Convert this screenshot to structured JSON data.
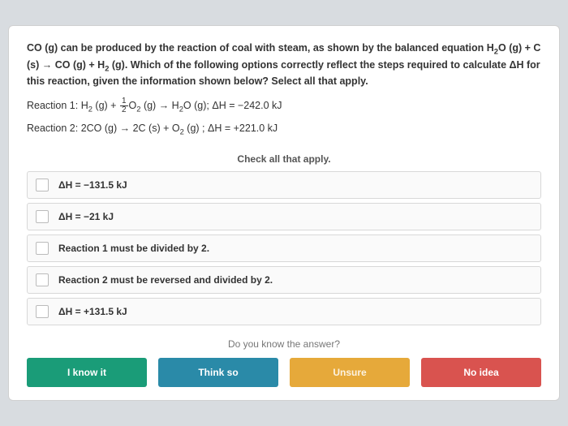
{
  "question_html": "CO (g) can be produced by the reaction of coal with steam, as shown by the balanced equation H<sub>2</sub>O (g) + C (s) → CO (g) + H<sub>2</sub> (g). Which of the following options correctly reflect the steps required to calculate ΔH for this reaction, given the information shown below? Select all that apply.",
  "reaction1_html": "Reaction 1: H<sub>2</sub> (g) + <span class='frac'><span class='n'>1</span><span class='d'>2</span></span>O<sub>2</sub> (g) → H<sub>2</sub>O (g); ΔH = −242.0 kJ",
  "reaction2_html": "Reaction 2: 2CO (g) → 2C (s) + O<sub>2</sub> (g) ; ΔH = +221.0 kJ",
  "instruction": "Check all that apply.",
  "options": [
    {
      "label": "ΔH = −131.5 kJ"
    },
    {
      "label": "ΔH = −21 kJ"
    },
    {
      "label": "Reaction 1 must be divided by 2."
    },
    {
      "label": "Reaction 2 must be reversed and divided by 2."
    },
    {
      "label": "ΔH = +131.5 kJ"
    }
  ],
  "know_prompt": "Do you know the answer?",
  "buttons": {
    "know": "I know it",
    "think": "Think so",
    "unsure": "Unsure",
    "noidea": "No idea"
  },
  "colors": {
    "know": "#1a9c78",
    "think": "#2a8aa8",
    "unsure": "#e6a93a",
    "noidea": "#d9534f",
    "card_bg": "#ffffff",
    "page_bg": "#d8dce0"
  }
}
